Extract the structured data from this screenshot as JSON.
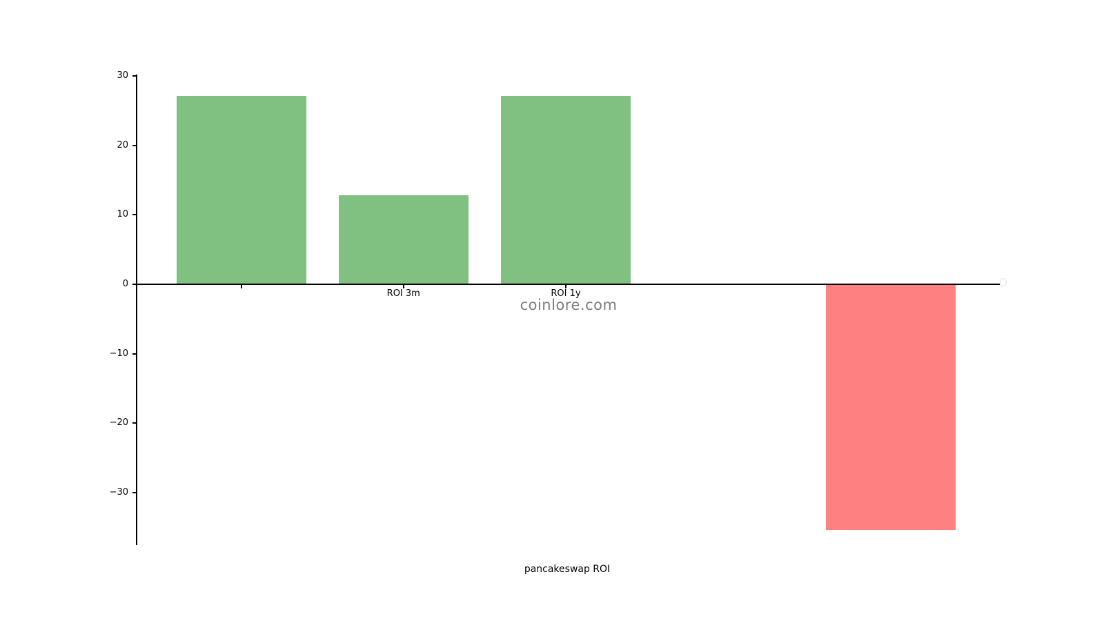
{
  "watermark": "coinlore.com",
  "chart_data": {
    "type": "bar",
    "title": "",
    "xlabel": "pancakeswap ROI",
    "ylabel": "",
    "categories": [
      "",
      "ROI 3m",
      "ROI 1y",
      "",
      ""
    ],
    "values": [
      27.1,
      12.8,
      27.1,
      null,
      -35.4
    ],
    "series_note": "single series; green = positive ROI, red = negative ROI; slot 4 has no bar",
    "colors": {
      "positive_bar": "#80c080",
      "negative_bar": "#ff8080",
      "axis": "#000000",
      "tick_text": "#000000",
      "watermark_text": "#7d7d7d"
    },
    "yticks": [
      30,
      20,
      10,
      0,
      -10,
      -20,
      -30
    ],
    "ytick_labels": [
      "30",
      "20",
      "10",
      "0",
      "−10",
      "−20",
      "−30"
    ],
    "ylim": [
      -37.6,
      30.2
    ],
    "xticks_with_marks": [
      0,
      1,
      2
    ],
    "grid": false,
    "legend": null,
    "x_axis_position": "zero-line"
  }
}
